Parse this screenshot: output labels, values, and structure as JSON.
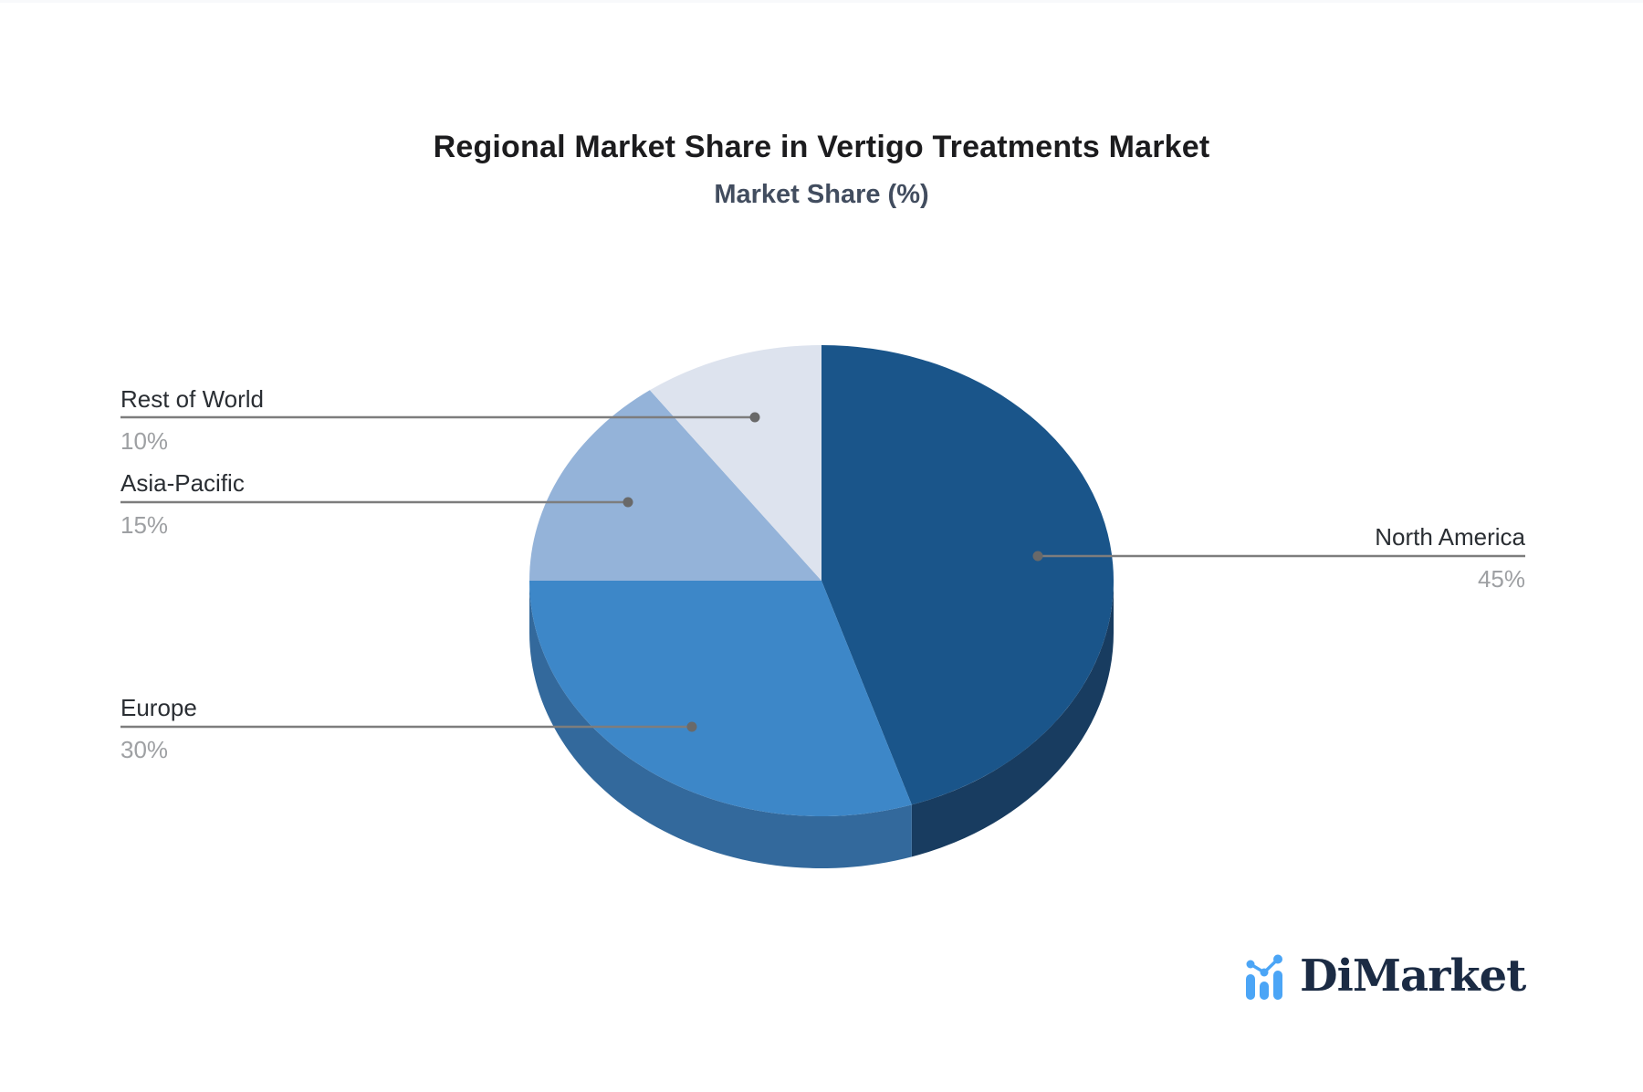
{
  "header": {
    "title": "Regional Market Share in Vertigo Treatments Market",
    "subtitle": "Market Share (%)"
  },
  "chart_data": {
    "type": "pie",
    "style": "3d",
    "title": "Regional Market Share in Vertigo Treatments Market",
    "subtitle": "Market Share (%)",
    "unit": "%",
    "start_angle_deg": 0,
    "direction": "clockwise",
    "legend_position": "callout-labels",
    "slices": [
      {
        "label": "North America",
        "value": 45,
        "display_value": "45%",
        "color": "#1A558A",
        "side_color": "#183C60",
        "label_side": "right"
      },
      {
        "label": "Europe",
        "value": 30,
        "display_value": "30%",
        "color": "#3D87C8",
        "side_color": "#33699C",
        "label_side": "left"
      },
      {
        "label": "Asia-Pacific",
        "value": 15,
        "display_value": "15%",
        "color": "#94B3D9",
        "side_color": "#7FA3CC",
        "label_side": "left"
      },
      {
        "label": "Rest of World",
        "value": 10,
        "display_value": "10%",
        "color": "#DDE3EE",
        "side_color": "#C2CCDD",
        "label_side": "left"
      }
    ]
  },
  "colors": {
    "background": "#FFFFFF",
    "title": "#1C1C1E",
    "subtitle": "#424D5F",
    "callout_label": "#2A2E33",
    "callout_value": "#9EA0A3",
    "leader_line": "#7D7D7D",
    "leader_dot": "#696969"
  },
  "branding": {
    "logo_text": "DiMarket",
    "logo_icon": "bar-chart-trend-icon",
    "logo_icon_color": "#4BA5F6",
    "logo_text_color": "#1B2B44"
  }
}
